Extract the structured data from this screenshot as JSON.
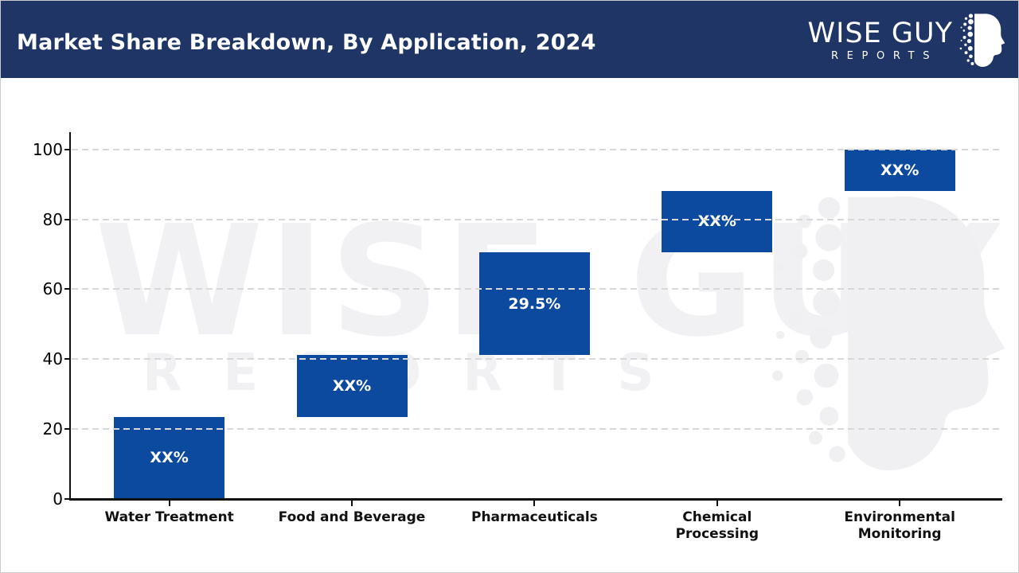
{
  "header": {
    "title": "Market Share Breakdown, By Application, 2024",
    "logo": {
      "line1": "WISE GUY",
      "line2": "REPORTS"
    }
  },
  "watermark": {
    "line1": "WISE GUY",
    "line2": "REPORTS"
  },
  "colors": {
    "header_bg": "#1F3565",
    "bar": "#0C4AA0",
    "gridline": "#D8D8D8",
    "axis": "#111111",
    "bar_label": "#FFFFFF",
    "watermark": "#F1F1F3"
  },
  "chart_data": {
    "type": "bar",
    "subtype": "waterfall",
    "title": "Market Share Breakdown, By Application, 2024",
    "categories": [
      "Water Treatment",
      "Food and Beverage",
      "Pharmaceuticals",
      "Chemical Processing",
      "Environmental Monitoring"
    ],
    "tick_label_lines": [
      [
        "Water Treatment"
      ],
      [
        "Food and Beverage"
      ],
      [
        "Pharmaceuticals"
      ],
      [
        "Chemical",
        "Processing"
      ],
      [
        "Environmental",
        "Monitoring"
      ]
    ],
    "series": [
      {
        "name": "Market share (%)",
        "segments": [
          {
            "category": "Water Treatment",
            "start": 0,
            "end": 23.4,
            "label": "XX%"
          },
          {
            "category": "Food and Beverage",
            "start": 23.4,
            "end": 41.1,
            "label": "XX%"
          },
          {
            "category": "Pharmaceuticals",
            "start": 41.1,
            "end": 70.6,
            "label": "29.5%"
          },
          {
            "category": "Chemical Processing",
            "start": 70.6,
            "end": 88.2,
            "label": "XX%"
          },
          {
            "category": "Environmental Monitoring",
            "start": 88.2,
            "end": 100,
            "label": "XX%"
          }
        ]
      }
    ],
    "xlabel": "",
    "ylabel": "",
    "yticks": [
      0,
      20,
      40,
      60,
      80,
      100
    ],
    "ylim": [
      0,
      105
    ],
    "grid": "horizontal-dashed",
    "legend": "none"
  }
}
